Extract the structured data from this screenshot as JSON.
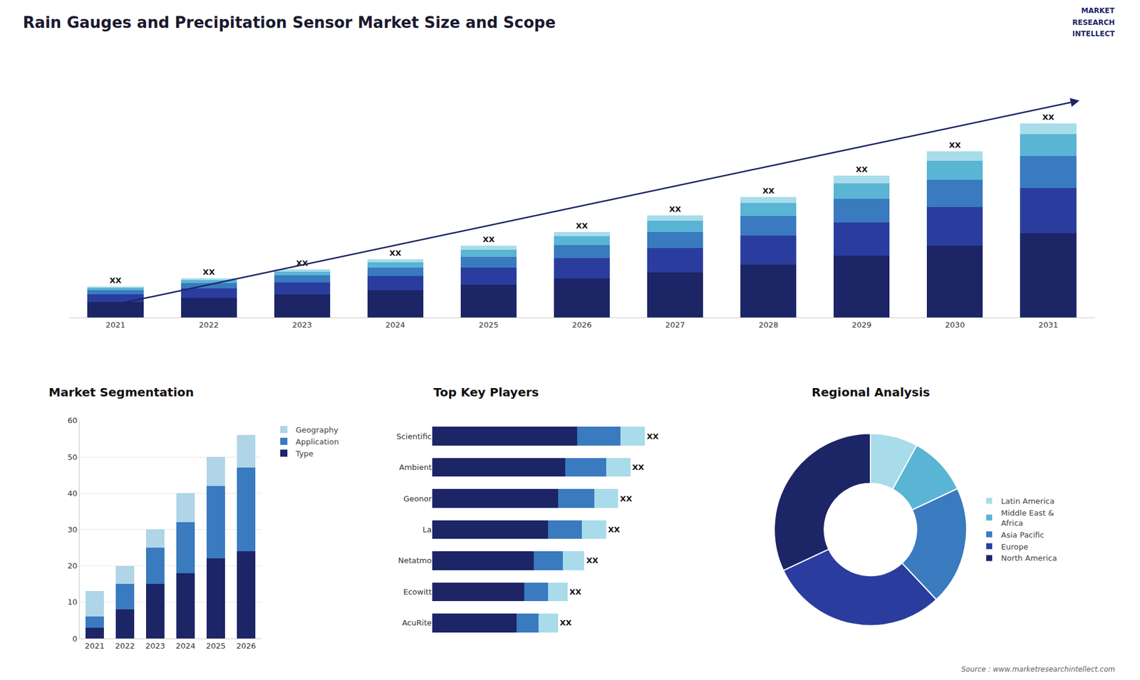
{
  "title": "Rain Gauges and Precipitation Sensor Market Size and Scope",
  "annotations": [
    "Source : www.marketresearchintellect.com",
    "MARKET",
    "RESEARCH",
    "INTELLECT"
  ],
  "chart_data": [
    {
      "type": "bar",
      "stacked": true,
      "tick_labels": "x",
      "data_labels": true,
      "categories": [
        "2021",
        "2022",
        "2023",
        "2024",
        "2025",
        "2026",
        "2027",
        "2028",
        "2029",
        "2030",
        "2031"
      ],
      "ylim": [
        0,
        32.37
      ],
      "series": [
        {
          "color": "#1c2566",
          "values": [
            2.0,
            2.5,
            3.0,
            3.5,
            4.2,
            5.0,
            5.8,
            6.8,
            7.9,
            9.2,
            10.8
          ]
        },
        {
          "color": "#2a3d9e",
          "values": [
            1.0,
            1.2,
            1.5,
            1.8,
            2.2,
            2.6,
            3.1,
            3.7,
            4.3,
            5.0,
            5.8
          ]
        },
        {
          "color": "#3a7abf",
          "values": [
            0.5,
            0.7,
            0.9,
            1.1,
            1.4,
            1.7,
            2.1,
            2.5,
            3.0,
            3.5,
            4.1
          ]
        },
        {
          "color": "#5ab4d4",
          "values": [
            0.3,
            0.4,
            0.5,
            0.7,
            0.9,
            1.1,
            1.4,
            1.7,
            2.0,
            2.4,
            2.8
          ]
        },
        {
          "color": "#a8dcea",
          "values": [
            0.2,
            0.2,
            0.3,
            0.4,
            0.5,
            0.6,
            0.7,
            0.8,
            1.0,
            1.2,
            1.4
          ],
          "value_labels": [
            "XX",
            "XX",
            "XX",
            "XX",
            "XX",
            "XX",
            "XX",
            "XX",
            "XX",
            "XX",
            "XX"
          ]
        }
      ]
    },
    {
      "type": "bar",
      "title": "Market Segmentation",
      "stacked": true,
      "grid": true,
      "legend": "right",
      "categories": [
        "2021",
        "2022",
        "2023",
        "2024",
        "2025",
        "2026"
      ],
      "ylim": [
        0,
        60
      ],
      "yticks": [
        0,
        10,
        20,
        30,
        40,
        50,
        60
      ],
      "series": [
        {
          "name": "Type",
          "color": "#1c2566",
          "values": [
            3,
            8,
            15,
            18,
            22,
            24
          ]
        },
        {
          "name": "Application",
          "color": "#3a7abf",
          "values": [
            3,
            7,
            10,
            14,
            20,
            23
          ]
        },
        {
          "name": "Geography",
          "color": "#b0d4e8",
          "values": [
            7,
            5,
            5,
            8,
            8,
            9
          ]
        }
      ]
    },
    {
      "type": "bar",
      "title": "Top Key Players",
      "orientation": "horizontal",
      "stacked": true,
      "tick_labels": "y",
      "data_labels": true,
      "categories": [
        "Scientific",
        "Ambient",
        "Geonor",
        "La",
        "Netatmo",
        "Ecowitt",
        "AcuRite"
      ],
      "xlim": [
        0,
        1.15
      ],
      "series": [
        {
          "color": "#1c2566",
          "values": [
            0.6,
            0.55,
            0.52,
            0.48,
            0.42,
            0.38,
            0.35
          ]
        },
        {
          "color": "#3a7abf",
          "values": [
            0.18,
            0.17,
            0.15,
            0.14,
            0.12,
            0.1,
            0.09
          ]
        },
        {
          "color": "#a8dcea",
          "values": [
            0.1,
            0.1,
            0.1,
            0.1,
            0.09,
            0.08,
            0.08
          ],
          "value_labels": [
            "XX",
            "XX",
            "XX",
            "XX",
            "XX",
            "XX",
            "XX"
          ]
        }
      ]
    },
    {
      "type": "donut",
      "title": "Regional Analysis",
      "legend": "right",
      "categories": [
        "Latin America",
        "Middle East &\nAfrica",
        "Asia Pacific",
        "Europe",
        "North America"
      ],
      "values": [
        8,
        10,
        20,
        30,
        32
      ],
      "colors": [
        "#a8dcea",
        "#5ab4d4",
        "#3a7abf",
        "#2a3d9e",
        "#1c2566"
      ]
    }
  ]
}
